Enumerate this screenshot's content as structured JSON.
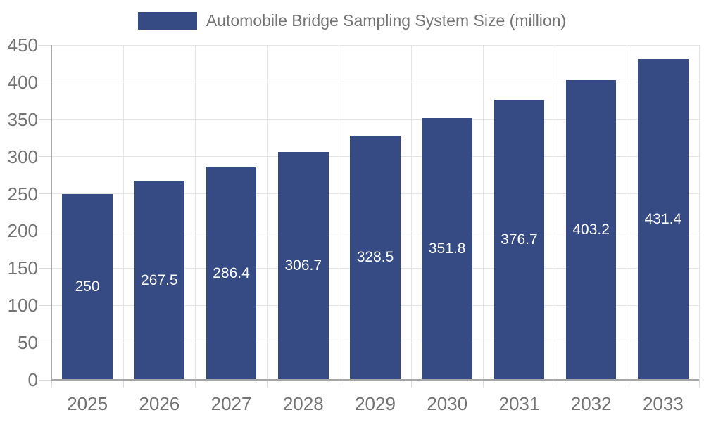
{
  "legend": {
    "label": "Automobile Bridge Sampling System Size (million)"
  },
  "chart_data": {
    "type": "bar",
    "title": "Automobile Bridge Sampling System Size (million)",
    "categories": [
      "2025",
      "2026",
      "2027",
      "2028",
      "2029",
      "2030",
      "2031",
      "2032",
      "2033"
    ],
    "values": [
      250,
      267.5,
      286.4,
      306.7,
      328.5,
      351.8,
      376.7,
      403.2,
      431.4
    ],
    "value_labels": [
      "250",
      "267.5",
      "286.4",
      "306.7",
      "328.5",
      "351.8",
      "376.7",
      "403.2",
      "431.4"
    ],
    "xlabel": "",
    "ylabel": "",
    "ylim": [
      0,
      450
    ],
    "yticks": [
      0,
      50,
      100,
      150,
      200,
      250,
      300,
      350,
      400,
      450
    ],
    "grid": true,
    "legend_position": "top",
    "colors": {
      "bar": "#364a84",
      "gridline": "#e6e6e6",
      "axis_line": "#a6a6a6",
      "tick_mark": "#dcdcdc",
      "tick_label": "#737373",
      "legend_text": "#757575",
      "value_label": "#ffffff",
      "background": "#ffffff"
    }
  }
}
